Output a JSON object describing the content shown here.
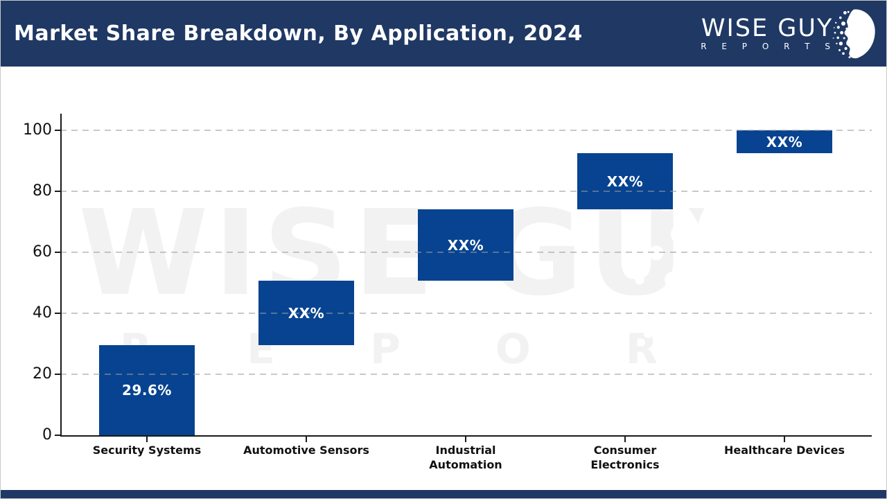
{
  "header": {
    "title": "Market Share Breakdown, By Application, 2024",
    "logo": {
      "line1": "WISE GUY",
      "line2": "R E P O R T S"
    }
  },
  "watermark": {
    "line1": "WISE GUY",
    "line2": "R E P O R T S"
  },
  "colors": {
    "header_bg": "#1f3864",
    "bar": "#074390",
    "watermark": "#f2f2f2",
    "grid": "#9b9b9b",
    "axis": "#1a1a1a"
  },
  "chart_data": {
    "type": "bar",
    "subtype": "waterfall",
    "title": "Market Share Breakdown, By Application, 2024",
    "xlabel": "",
    "ylabel": "",
    "ylim": [
      0,
      105
    ],
    "y_ticks": [
      0,
      20,
      40,
      60,
      80,
      100
    ],
    "grid": "dashed horizontal",
    "legend": "none",
    "bar_color": "#074390",
    "categories": [
      "Security Systems",
      "Automotive Sensors",
      "Industrial Automation",
      "Consumer Electronics",
      "Healthcare Devices"
    ],
    "x_label_lines": [
      [
        "Security Systems"
      ],
      [
        "Automotive Sensors"
      ],
      [
        "Industrial",
        "Automation"
      ],
      [
        "Consumer",
        "Electronics"
      ],
      [
        "Healthcare Devices"
      ]
    ],
    "segments": [
      {
        "category": "Security Systems",
        "start": 0,
        "end": 29.6,
        "label": "29.6%"
      },
      {
        "category": "Automotive Sensors",
        "start": 29.6,
        "end": 50.6,
        "label": "XX%"
      },
      {
        "category": "Industrial Automation",
        "start": 50.6,
        "end": 74.1,
        "label": "XX%"
      },
      {
        "category": "Consumer Electronics",
        "start": 74.1,
        "end": 92.4,
        "label": "XX%"
      },
      {
        "category": "Healthcare Devices",
        "start": 92.4,
        "end": 100,
        "label": "XX%"
      }
    ]
  }
}
